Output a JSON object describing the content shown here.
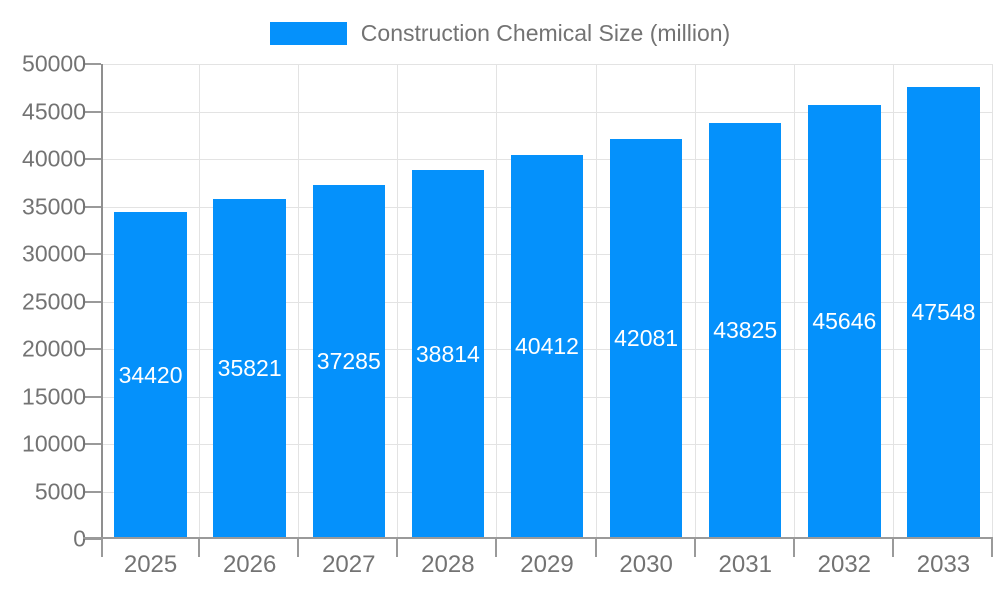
{
  "legend": {
    "label": "Construction Chemical Size (million)"
  },
  "chart_data": {
    "type": "bar",
    "title": "Construction Chemical Size (million)",
    "categories": [
      "2025",
      "2026",
      "2027",
      "2028",
      "2029",
      "2030",
      "2031",
      "2032",
      "2033"
    ],
    "values": [
      34420,
      35821,
      37285,
      38814,
      40412,
      42081,
      43825,
      45646,
      47548
    ],
    "xlabel": "",
    "ylabel": "",
    "ylim": [
      0,
      50000
    ],
    "ytick_step": 5000,
    "grid": true,
    "legend_position": "top-center",
    "bar_color": "#0591fb",
    "bar_label_color": "#ffffff",
    "axis_text_color": "#737373",
    "grid_color": "#e3e3e3",
    "axis_line_color": "#9a9a9a",
    "background_color": "#ffffff"
  }
}
